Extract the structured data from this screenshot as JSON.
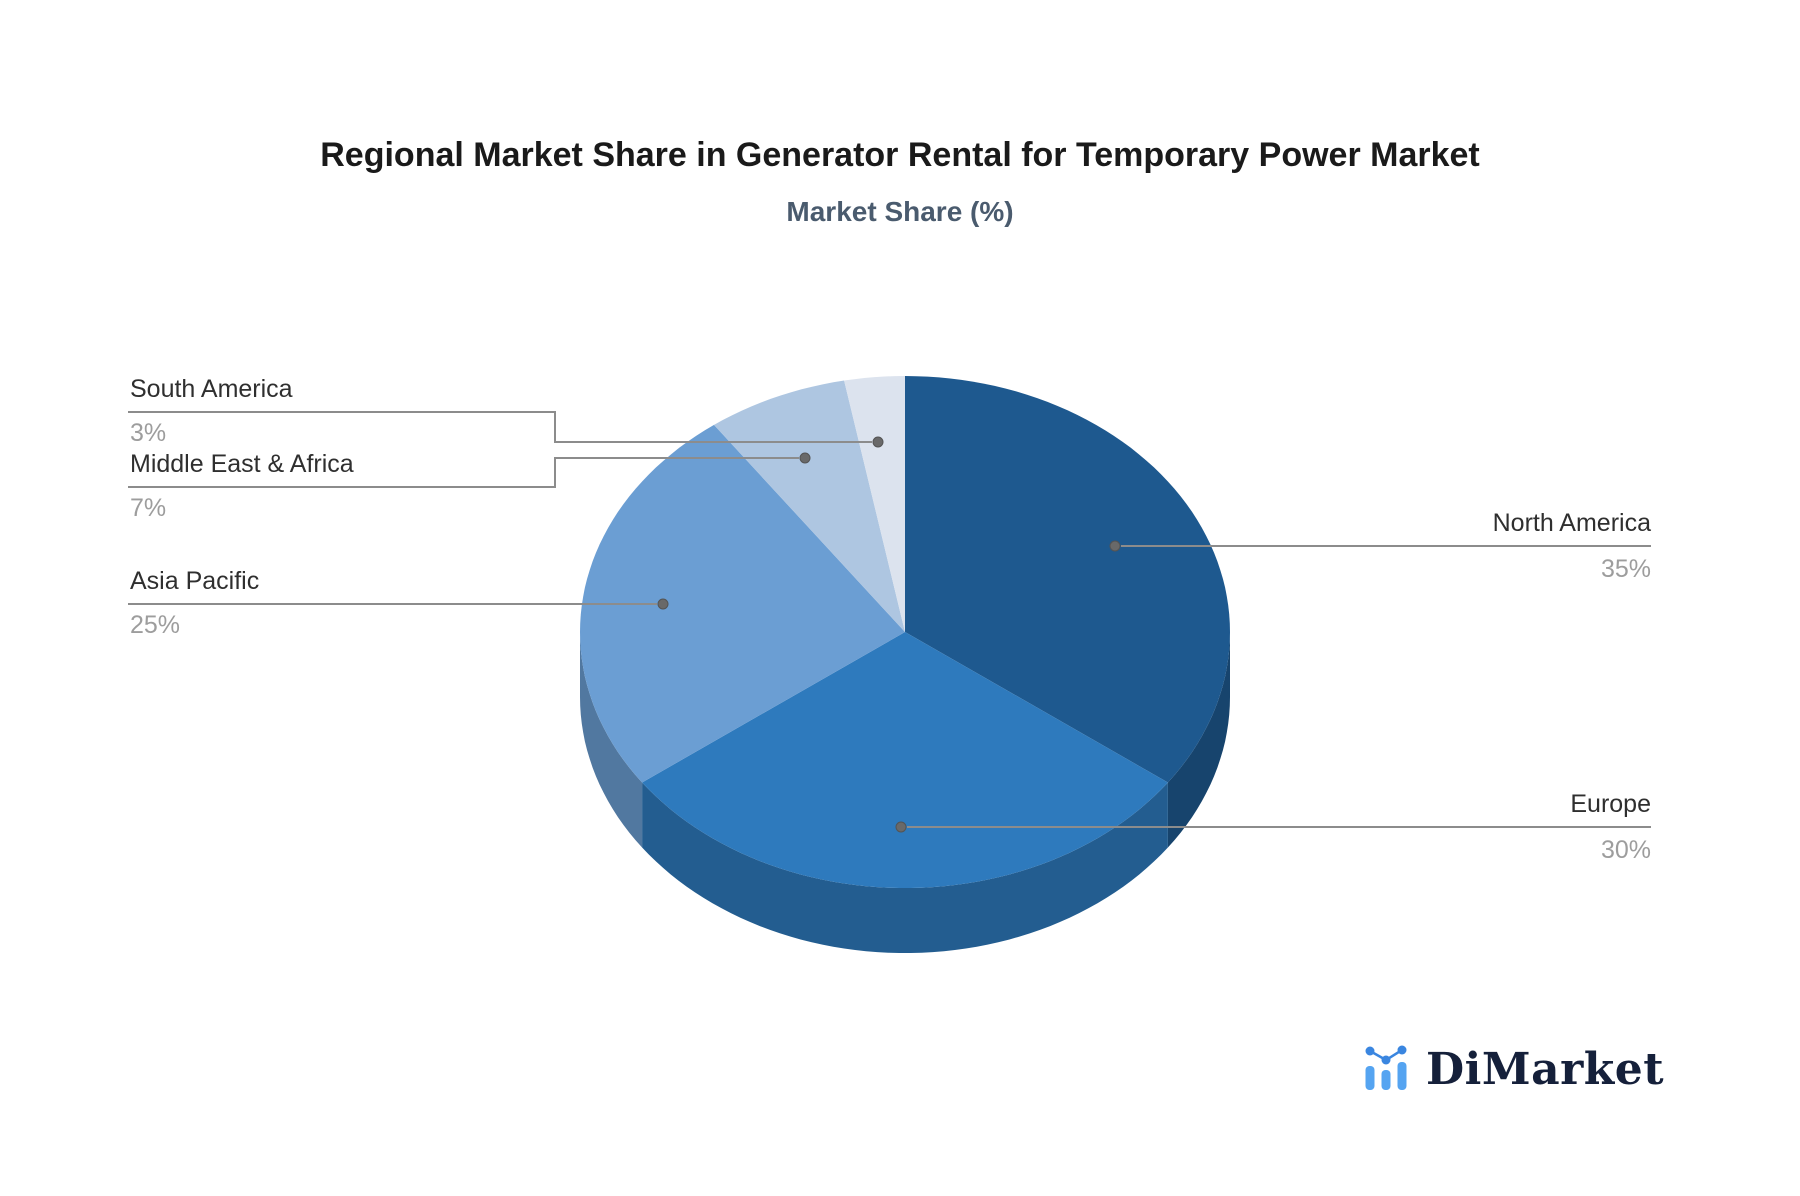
{
  "chart_data": {
    "type": "pie",
    "style": "3d",
    "title": "Regional Market Share in Generator Rental for Temporary Power Market",
    "subtitle": "Market Share (%)",
    "unit": "%",
    "categories": [
      "North America",
      "Europe",
      "Asia Pacific",
      "Middle East & Africa",
      "South America"
    ],
    "values": [
      35,
      30,
      25,
      7,
      3
    ],
    "value_labels": [
      "35%",
      "30%",
      "25%",
      "7%",
      "3%"
    ],
    "colors": [
      "#1e598f",
      "#2e7abd",
      "#6b9ed3",
      "#aec6e1",
      "#dce3ee"
    ],
    "start_angle_deg": 0,
    "direction": "clockwise",
    "legend_position": "none",
    "labels_position": "outside-with-leader-lines",
    "callout_style": {
      "line_color": "#8c8c8c",
      "dot_color": "#696969",
      "label_color": "#2f2f2f",
      "value_color": "#9d9d9d"
    }
  },
  "brand": {
    "name": "DiMarket",
    "icon": "bar-chart-logo-icon",
    "text_color": "#15203a",
    "bar_color": "#55a4f1",
    "dot_color": "#3a86e0"
  }
}
